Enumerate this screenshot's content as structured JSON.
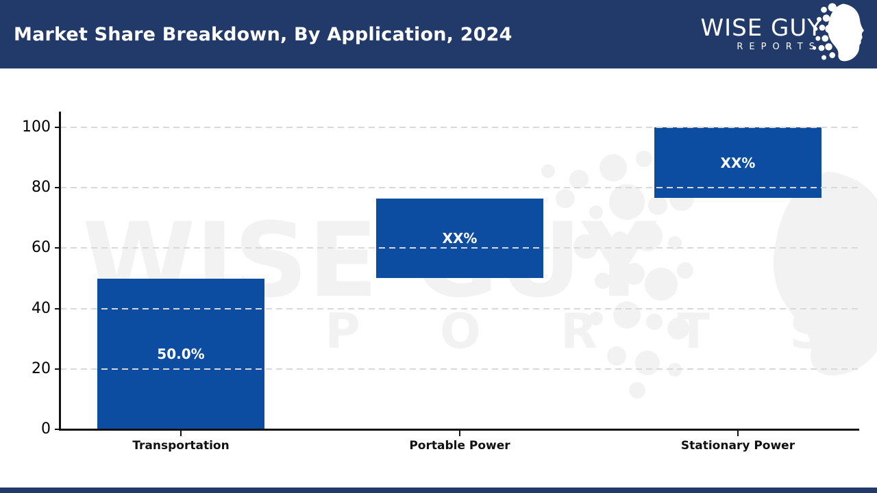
{
  "header": {
    "title": "Market Share Breakdown, By Application, 2024",
    "logo": {
      "line1": "WISE GUY",
      "line2": "REPORTS"
    }
  },
  "watermark": {
    "line1": "WISE GUY",
    "line2": "R E P O R T S"
  },
  "chart_data": {
    "type": "bar",
    "subtype": "waterfall-breakdown",
    "title": "Market Share Breakdown, By Application, 2024",
    "categories": [
      "Transportation",
      "Portable Power",
      "Stationary Power"
    ],
    "segments": [
      {
        "category": "Transportation",
        "start": 0,
        "end": 50,
        "label": "50.0%"
      },
      {
        "category": "Portable Power",
        "start": 50,
        "end": 76.5,
        "label": "XX%"
      },
      {
        "category": "Stationary Power",
        "start": 76.6,
        "end": 100,
        "label": "XX%"
      }
    ],
    "xlabel": "",
    "ylabel": "",
    "ylim": [
      0,
      100
    ],
    "yticks": [
      0,
      20,
      40,
      60,
      80,
      100
    ],
    "grid": "horizontal-dashed",
    "legend": "none",
    "bar_color": "#0c4da2",
    "bar_label_color": "#ffffff"
  },
  "colors": {
    "header_bg": "#223a6a",
    "footer_bg": "#223a6a",
    "background": "#ffffff",
    "gridline": "#d9d9d9",
    "axis": "#111111",
    "watermark": "#f2f2f3"
  }
}
